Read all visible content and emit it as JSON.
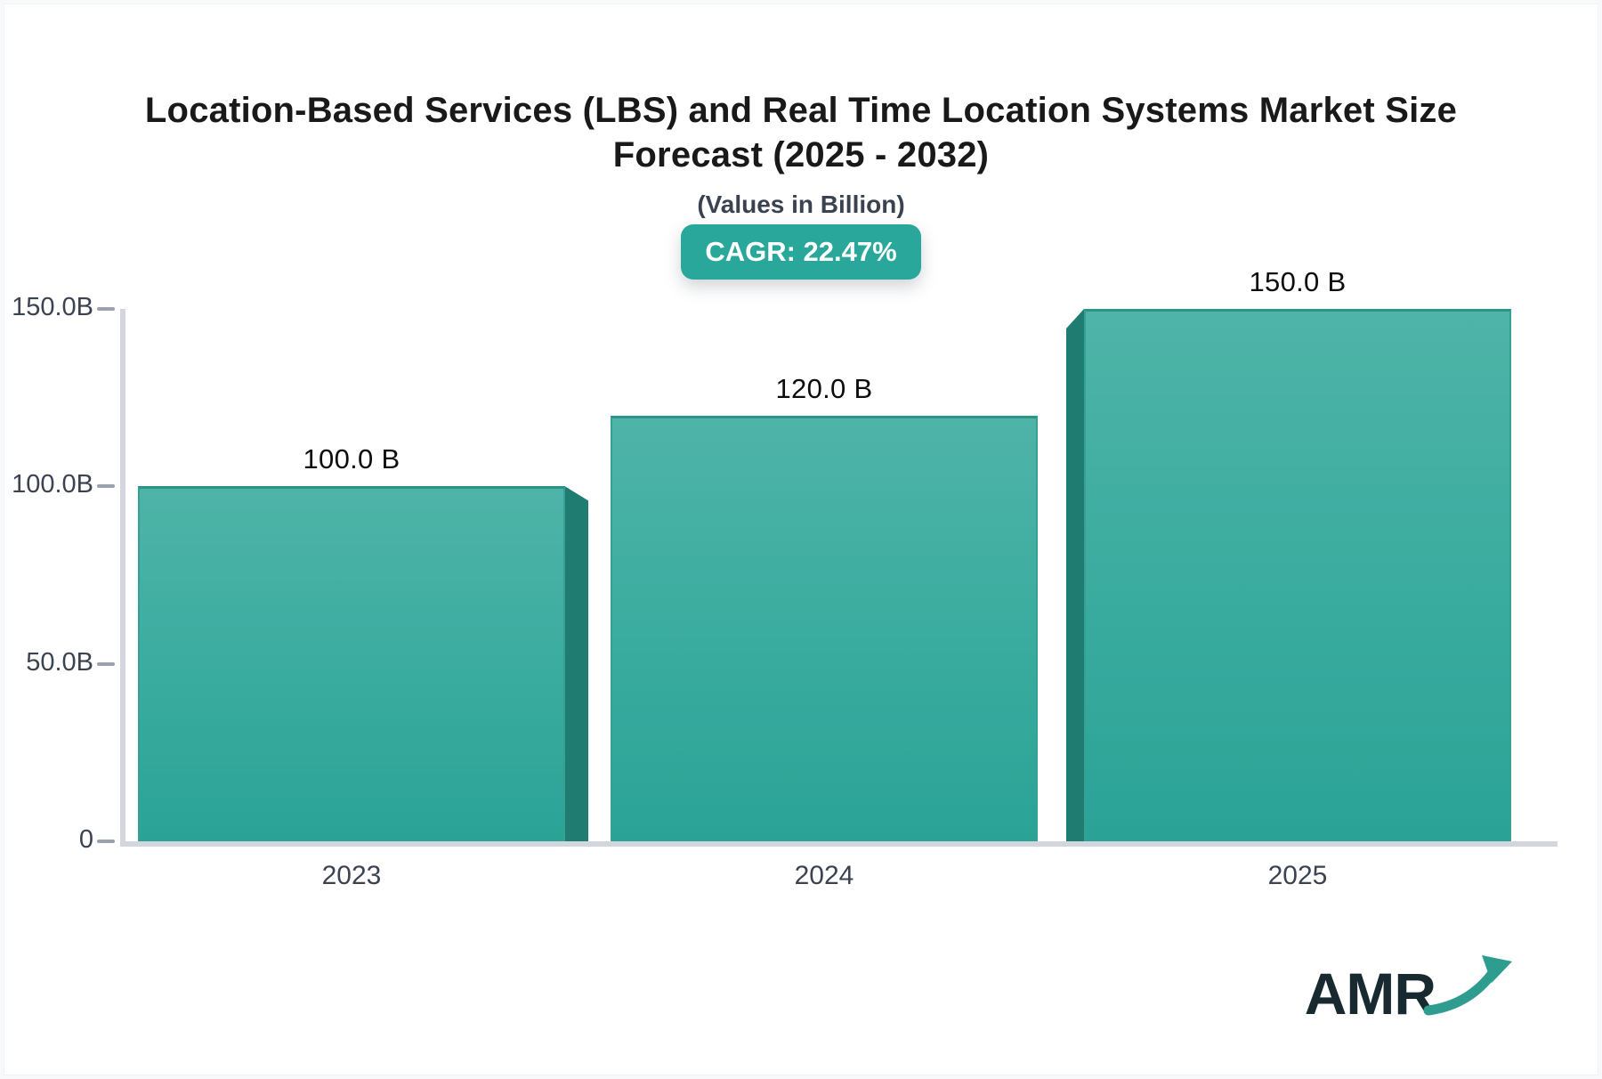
{
  "header": {
    "title": "Location-Based Services (LBS) and Real Time Location Systems Market Size Forecast (2025 - 2032)",
    "subtitle": "(Values in Billion)",
    "cagr_badge": "CAGR: 22.47%"
  },
  "chart_data": {
    "type": "bar",
    "title": "Location-Based Services (LBS) and Real Time Location Systems Market Size Forecast (2025 - 2032)",
    "subtitle": "(Values in Billion)",
    "cagr_percent": 22.47,
    "unit": "Billion",
    "categories": [
      "2023",
      "2024",
      "2025"
    ],
    "values": [
      100,
      120,
      150
    ],
    "bar_labels": [
      "100.0 B",
      "120.0 B",
      "150.0 B"
    ],
    "xlabel": "",
    "ylabel": "",
    "ylim": [
      0,
      150
    ],
    "yticks": [
      {
        "value": 0,
        "label": "0"
      },
      {
        "value": 50,
        "label": "50.0B"
      },
      {
        "value": 100,
        "label": "100.0B"
      },
      {
        "value": 150,
        "label": "150.0B"
      }
    ],
    "grid": false,
    "legend": "none",
    "colors": {
      "bar_gradient_top": "#4fb3a8",
      "bar_gradient_bottom": "#2aa396",
      "bar_stroke": "#2b9489",
      "bar_side_3d": "#1e7c70",
      "badge_background": "#29a79a",
      "axis_line": "#d3d6dd",
      "tick_text": "#3c4350",
      "title_text": "#191919"
    }
  },
  "logo": {
    "text": "AMR",
    "arrow_icon_color": "#2e9d90"
  }
}
